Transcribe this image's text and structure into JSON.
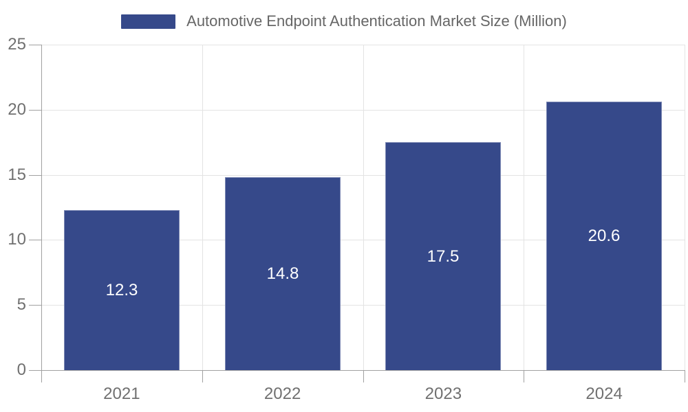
{
  "chart_data": {
    "type": "bar",
    "title": "Automotive Endpoint Authentication Market Size (Million)",
    "legend_entries": [
      "Automotive Endpoint Authentication Market Size (Million)"
    ],
    "legend_position": "top-center",
    "categories": [
      "2021",
      "2022",
      "2023",
      "2024"
    ],
    "series": [
      {
        "name": "Automotive Endpoint Authentication Market Size (Million)",
        "values": [
          12.3,
          14.8,
          17.5,
          20.6
        ]
      }
    ],
    "value_labels": [
      "12.3",
      "14.8",
      "17.5",
      "20.6"
    ],
    "value_label_position": "inside-center",
    "xlabel": "",
    "ylabel": "",
    "ylim": [
      0,
      25
    ],
    "yticks": [
      0,
      5,
      10,
      15,
      20,
      25
    ],
    "grid": true
  },
  "colors": {
    "bar": "#36498a",
    "bar_label": "#ffffff",
    "axis_line": "#a0a0a0",
    "grid_line": "#e3e3e3",
    "tick_label": "#707070",
    "legend_text": "#666666",
    "background": "#ffffff"
  }
}
